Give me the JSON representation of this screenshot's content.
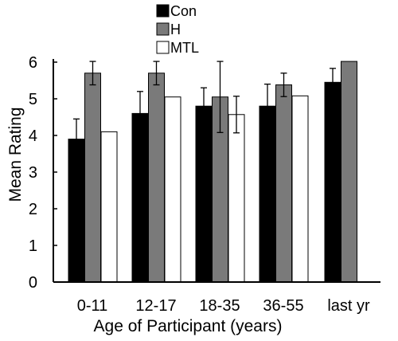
{
  "chart_data": {
    "type": "bar",
    "title": "",
    "xlabel": "Age of Participant (years)",
    "ylabel": "Mean Rating",
    "ylim": [
      0,
      6
    ],
    "yticks": [
      "0",
      "1",
      "2",
      "3",
      "4",
      "5",
      "6"
    ],
    "grid": false,
    "legend_position": "top",
    "categories": [
      "0-11",
      "12-17",
      "18-35",
      "36-55",
      "last yr"
    ],
    "series": [
      {
        "name": "Con",
        "color": "#000000",
        "values": [
          3.9,
          4.6,
          4.8,
          4.8,
          5.45
        ],
        "error": [
          0.55,
          0.6,
          0.5,
          0.6,
          0.38
        ]
      },
      {
        "name": "H",
        "color": "#7a7a7a",
        "values": [
          5.7,
          5.7,
          5.05,
          5.38,
          6.02
        ],
        "error": [
          0.32,
          0.32,
          0.97,
          0.32,
          0.0
        ]
      },
      {
        "name": "MTL",
        "color": "#ffffff",
        "values": [
          4.1,
          5.05,
          4.57,
          5.08,
          null
        ],
        "error": [
          0.0,
          0.0,
          0.5,
          0.0,
          0.0
        ]
      }
    ]
  }
}
